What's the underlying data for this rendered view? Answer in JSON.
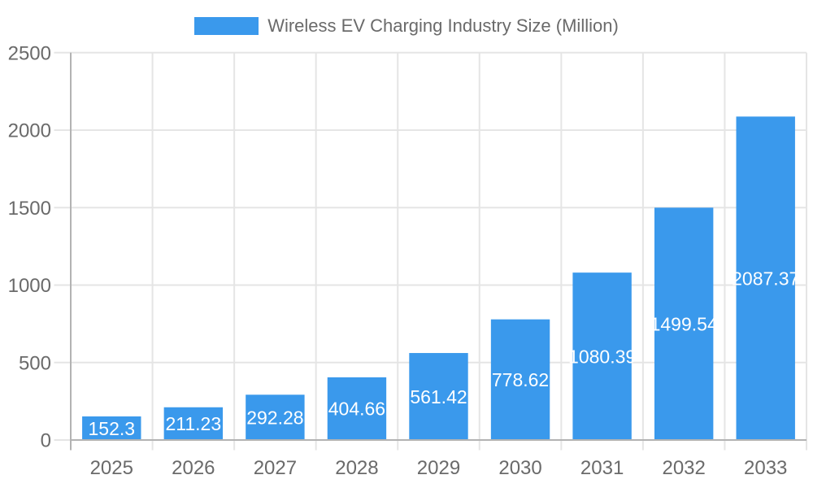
{
  "legend": {
    "label": "Wireless EV Charging Industry Size (Million)"
  },
  "chart_data": {
    "type": "bar",
    "title": "Wireless EV Charging Industry Size (Million)",
    "series_name": "Wireless EV Charging Industry Size (Million)",
    "categories": [
      "2025",
      "2026",
      "2027",
      "2028",
      "2029",
      "2030",
      "2031",
      "2032",
      "2033"
    ],
    "values": [
      152.3,
      211.23,
      292.28,
      404.66,
      561.42,
      778.62,
      1080.39,
      1499.54,
      2087.37
    ],
    "value_labels": [
      "152.3",
      "211.23",
      "292.28",
      "404.66",
      "561.42",
      "778.62",
      "1080.39",
      "1499.54",
      "2087.37"
    ],
    "xlabel": "",
    "ylabel": "",
    "ylim": [
      0,
      2500
    ],
    "yticks": [
      0,
      500,
      1000,
      1500,
      2000,
      2500
    ],
    "grid": true,
    "legend_position": "top",
    "colors": {
      "bar": "#3A99EC",
      "grid": "#E5E5E5",
      "axis": "#B3B3B3",
      "text": "#6A6A6A",
      "value_label": "#FFFFFF",
      "background": "#FFFFFF"
    }
  }
}
